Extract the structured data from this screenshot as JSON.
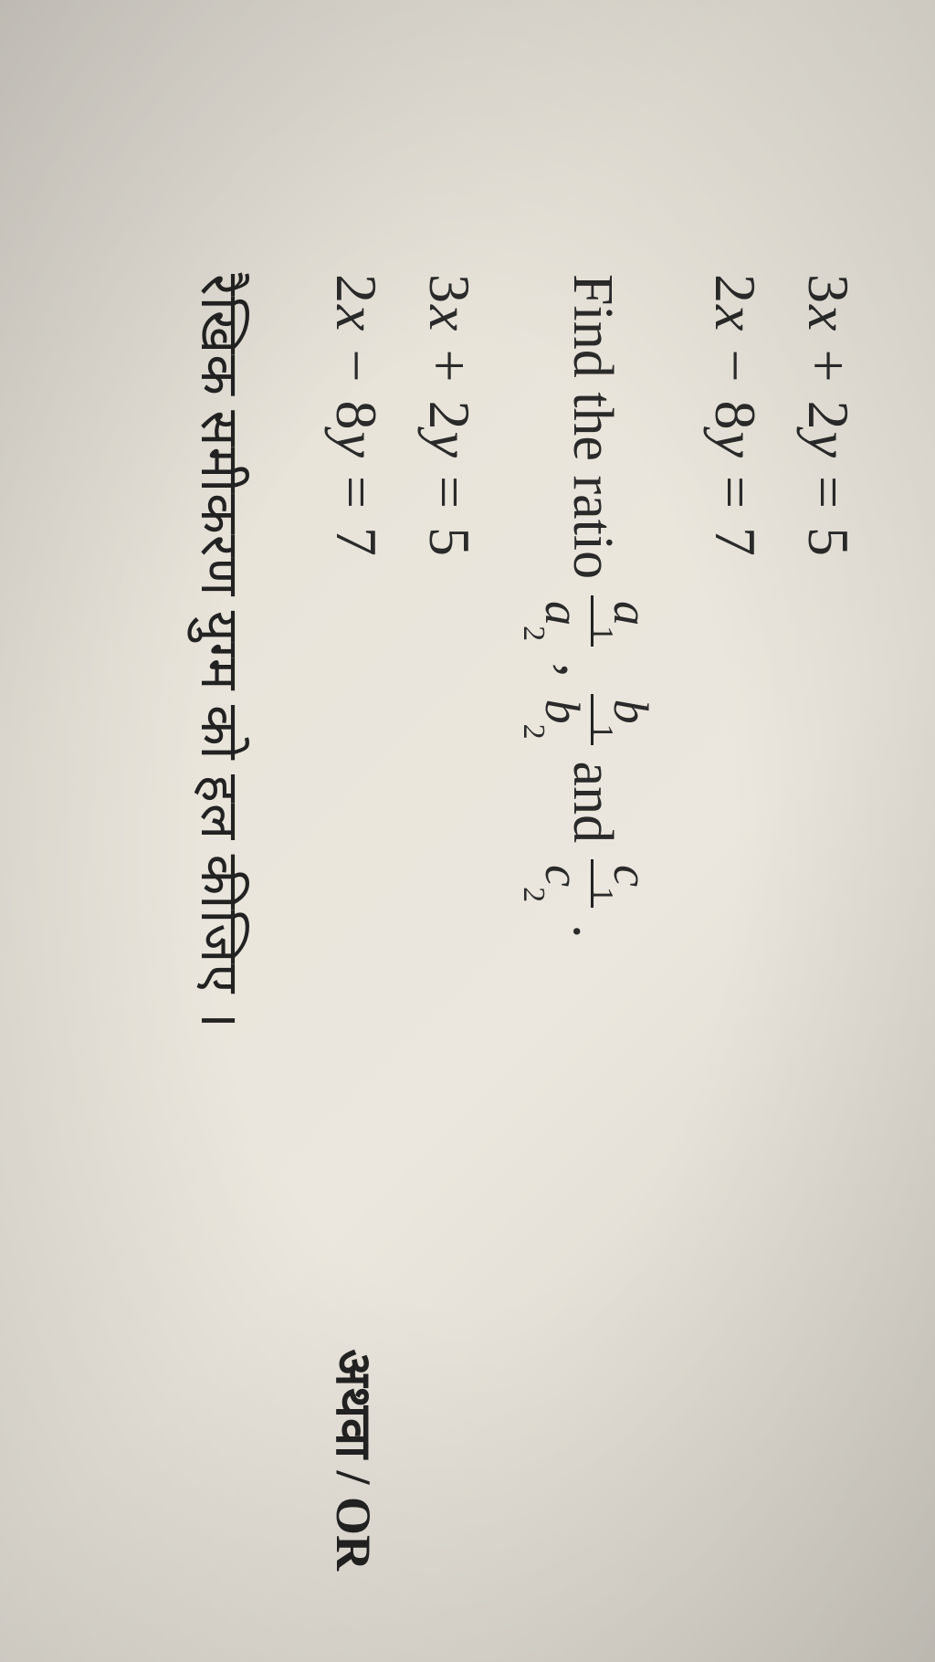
{
  "background_color": "#e5e1d8",
  "text_color": "#222222",
  "font_family": "Times New Roman",
  "equations_top": [
    "3x + 2y = 5",
    "2x − 8y = 7"
  ],
  "instruction": {
    "prefix": "Find the ratio",
    "ratios": [
      {
        "num": "a₁",
        "den": "a₂"
      },
      {
        "num": "b₁",
        "den": "b₂"
      },
      {
        "num": "c₁",
        "den": "c₂"
      }
    ],
    "separator": ",",
    "conjunction": "and",
    "suffix": "."
  },
  "equations_bottom": [
    "3x + 2y = 5",
    "2x − 8y = 7"
  ],
  "alternative_label": "अथवा / OR",
  "hindi_instruction": "रैखिक समीकरण युग्म को हल कीजिए ।",
  "styling": {
    "equation_fontsize": 64,
    "instruction_fontsize": 62,
    "fraction_fontsize": 54,
    "subscript_fontsize": 34,
    "hindi_fontsize": 58,
    "alt_label_fontsize": 54
  }
}
